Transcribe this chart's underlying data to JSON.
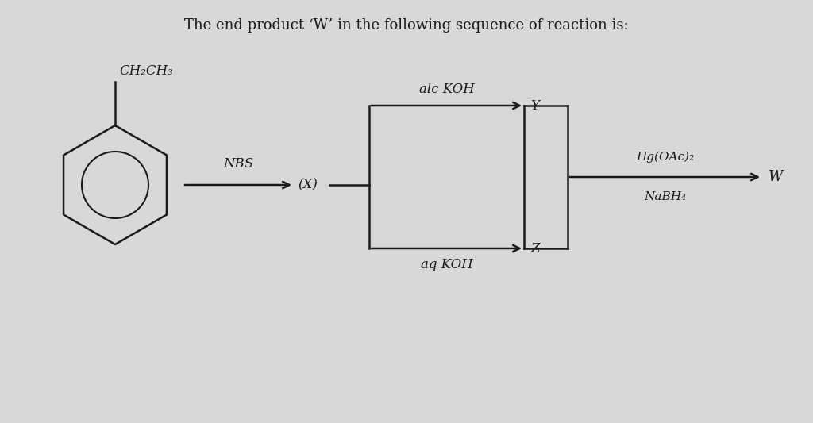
{
  "title": "The end product ‘W’ in the following sequence of reaction is:",
  "title_fontsize": 13,
  "bg_color": "#d8d8d8",
  "text_color": "#1a1a1a",
  "ch2ch3_label": "CH₂CH₃",
  "nbs_label": "NBS",
  "x_label": "(X)",
  "alc_koh_label": "alc KOH",
  "aq_koh_label": "aq KOH",
  "y_label": "Y",
  "z_label": "Z",
  "hg_label": "Hg(OAc)₂",
  "nabh4_label": "NaBH₄",
  "w_label": "W"
}
